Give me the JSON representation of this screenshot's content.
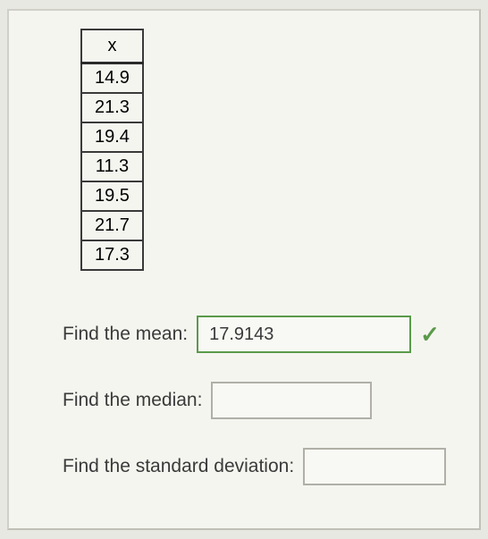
{
  "table": {
    "header": "x",
    "values": [
      "14.9",
      "21.3",
      "19.4",
      "11.3",
      "19.5",
      "21.7",
      "17.3"
    ],
    "header_bg": "#f5f5f0",
    "cell_bg": "#f5f5f0",
    "border_color": "#3a3a3a",
    "font_size": 20
  },
  "questions": {
    "mean": {
      "label": "Find the mean:",
      "value": "17.9143",
      "correct": true
    },
    "median": {
      "label": "Find the median:",
      "value": ""
    },
    "stddev": {
      "label": "Find the standard deviation:",
      "value": ""
    }
  },
  "colors": {
    "page_bg": "#e8e8e2",
    "container_bg": "#f5f5f0",
    "container_border": "#c0c0b8",
    "text": "#3a3a3a",
    "correct_border": "#5a9a4a",
    "checkmark": "#5a9a4a",
    "input_border": "#b0b0a8"
  }
}
